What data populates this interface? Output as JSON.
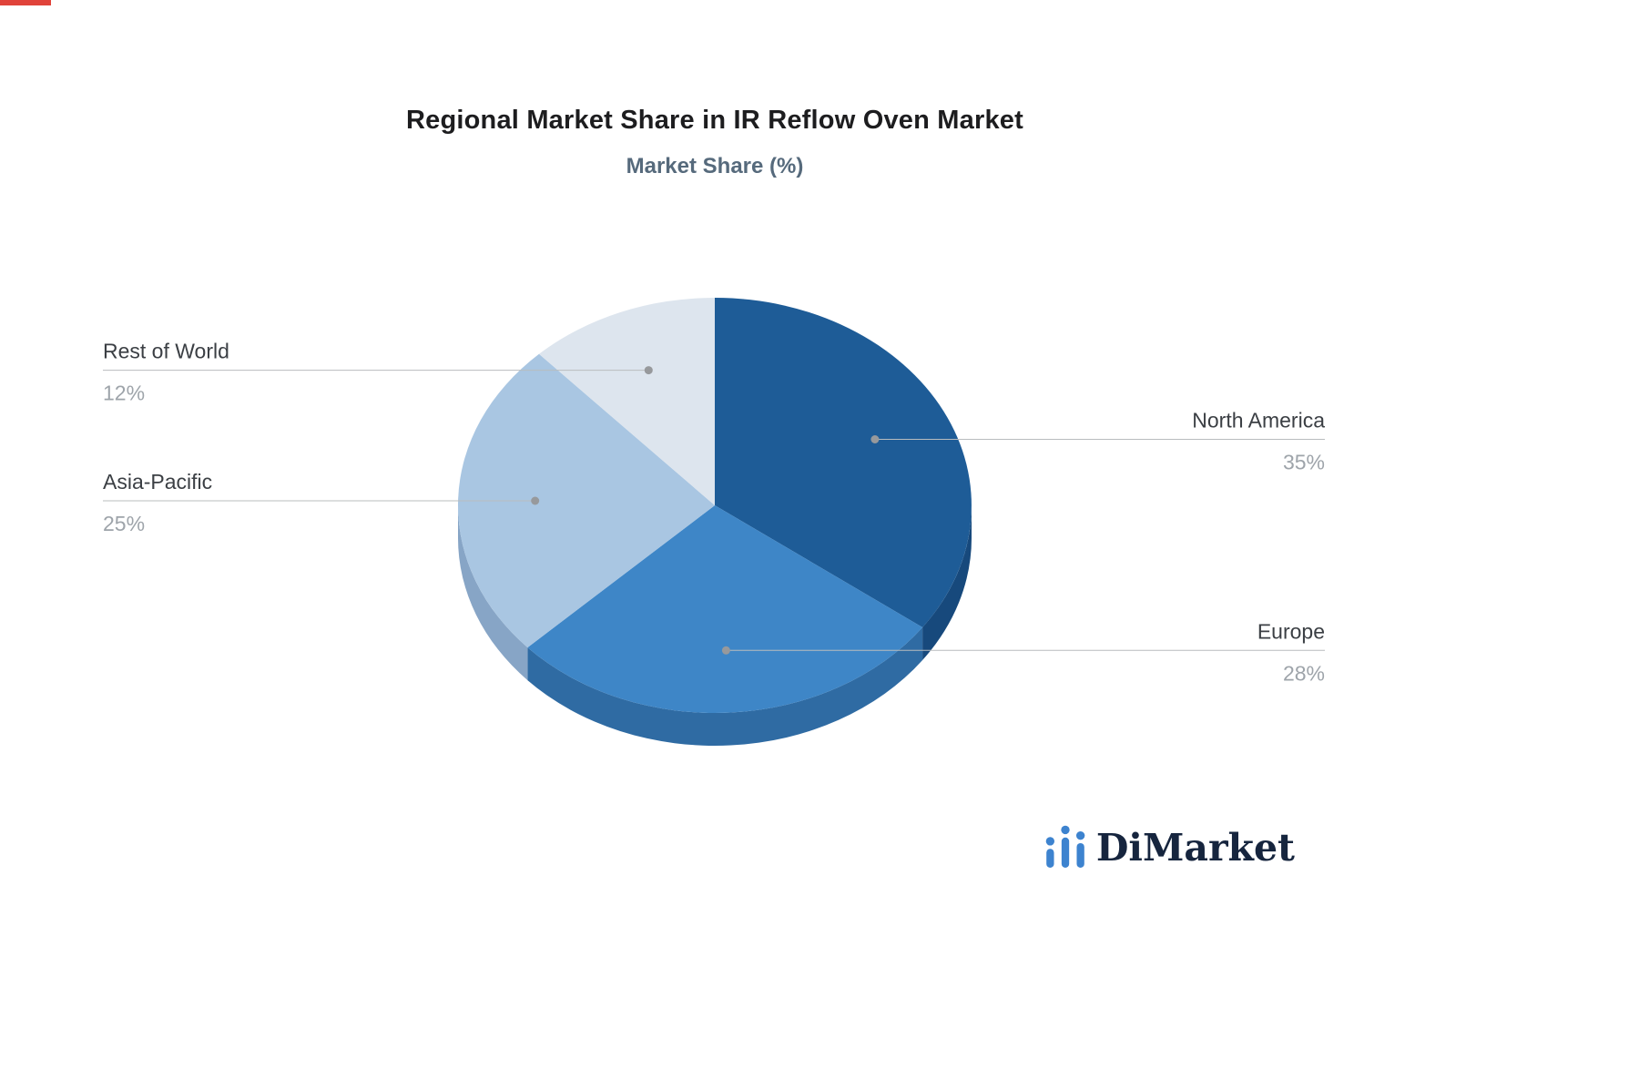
{
  "header": {
    "title": "Regional Market Share in IR Reflow Oven Market",
    "subtitle": "Market Share (%)"
  },
  "brand": {
    "name": "DiMarket",
    "icon_color": "#3d83cf",
    "text_color": "#16253e"
  },
  "artifact": {
    "color": "#e0433a"
  },
  "chart_data": {
    "type": "pie",
    "style": "3d",
    "title": "Regional Market Share in IR Reflow Oven Market",
    "subtitle": "Market Share (%)",
    "unit": "%",
    "value_suffix": "%",
    "start_angle_deg": 0,
    "direction": "clockwise",
    "legend_position": "none",
    "label_style": "callout",
    "slices": [
      {
        "label": "North America",
        "value": 35,
        "color": "#1e5c97",
        "side_color": "#17497c",
        "callout_side": "right"
      },
      {
        "label": "Europe",
        "value": 28,
        "color": "#3e86c7",
        "side_color": "#2f6ba3",
        "callout_side": "right"
      },
      {
        "label": "Asia-Pacific",
        "value": 25,
        "color": "#a9c6e2",
        "side_color": "#87a5c6",
        "callout_side": "left"
      },
      {
        "label": "Rest of World",
        "value": 12,
        "color": "#dde5ee",
        "side_color": "#bcc7d4",
        "callout_side": "left"
      }
    ],
    "label_color": "#3b3f44",
    "value_color": "#9ea4aa",
    "callout_line_color": "#b9bcbe",
    "callout_dot_color": "#97999c"
  }
}
